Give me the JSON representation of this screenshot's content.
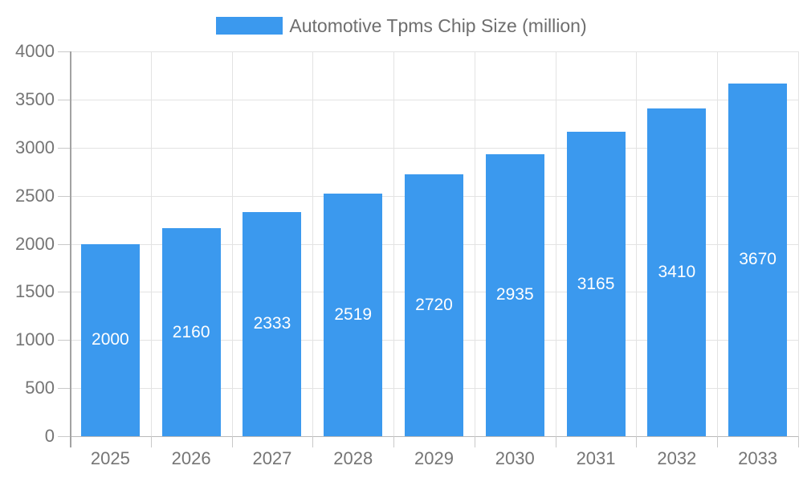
{
  "chart_data": {
    "type": "bar",
    "title": "Automotive Tpms Chip Size (million)",
    "categories": [
      "2025",
      "2026",
      "2027",
      "2028",
      "2029",
      "2030",
      "2031",
      "2032",
      "2033"
    ],
    "values": [
      2000,
      2160,
      2333,
      2519,
      2720,
      2935,
      3165,
      3410,
      3670
    ],
    "series": [
      {
        "name": "Automotive Tpms Chip Size (million)",
        "values": [
          2000,
          2160,
          2333,
          2519,
          2720,
          2935,
          3165,
          3410,
          3670
        ]
      }
    ],
    "xlabel": "",
    "ylabel": "",
    "ylim": [
      0,
      4000
    ],
    "y_tick_step": 500,
    "y_ticks": [
      0,
      500,
      1000,
      1500,
      2000,
      2500,
      3000,
      3500,
      4000
    ],
    "grid": true,
    "legend_position": "top",
    "bar_color": "#3b99ee",
    "bar_label_color": "#ffffff",
    "axis_label_color": "#757575",
    "title_color": "#6e6e6e",
    "gridline_color": "#e3e3e3"
  },
  "legend": {
    "label": "Automotive Tpms Chip Size (million)",
    "swatch_color": "#3b99ee"
  }
}
